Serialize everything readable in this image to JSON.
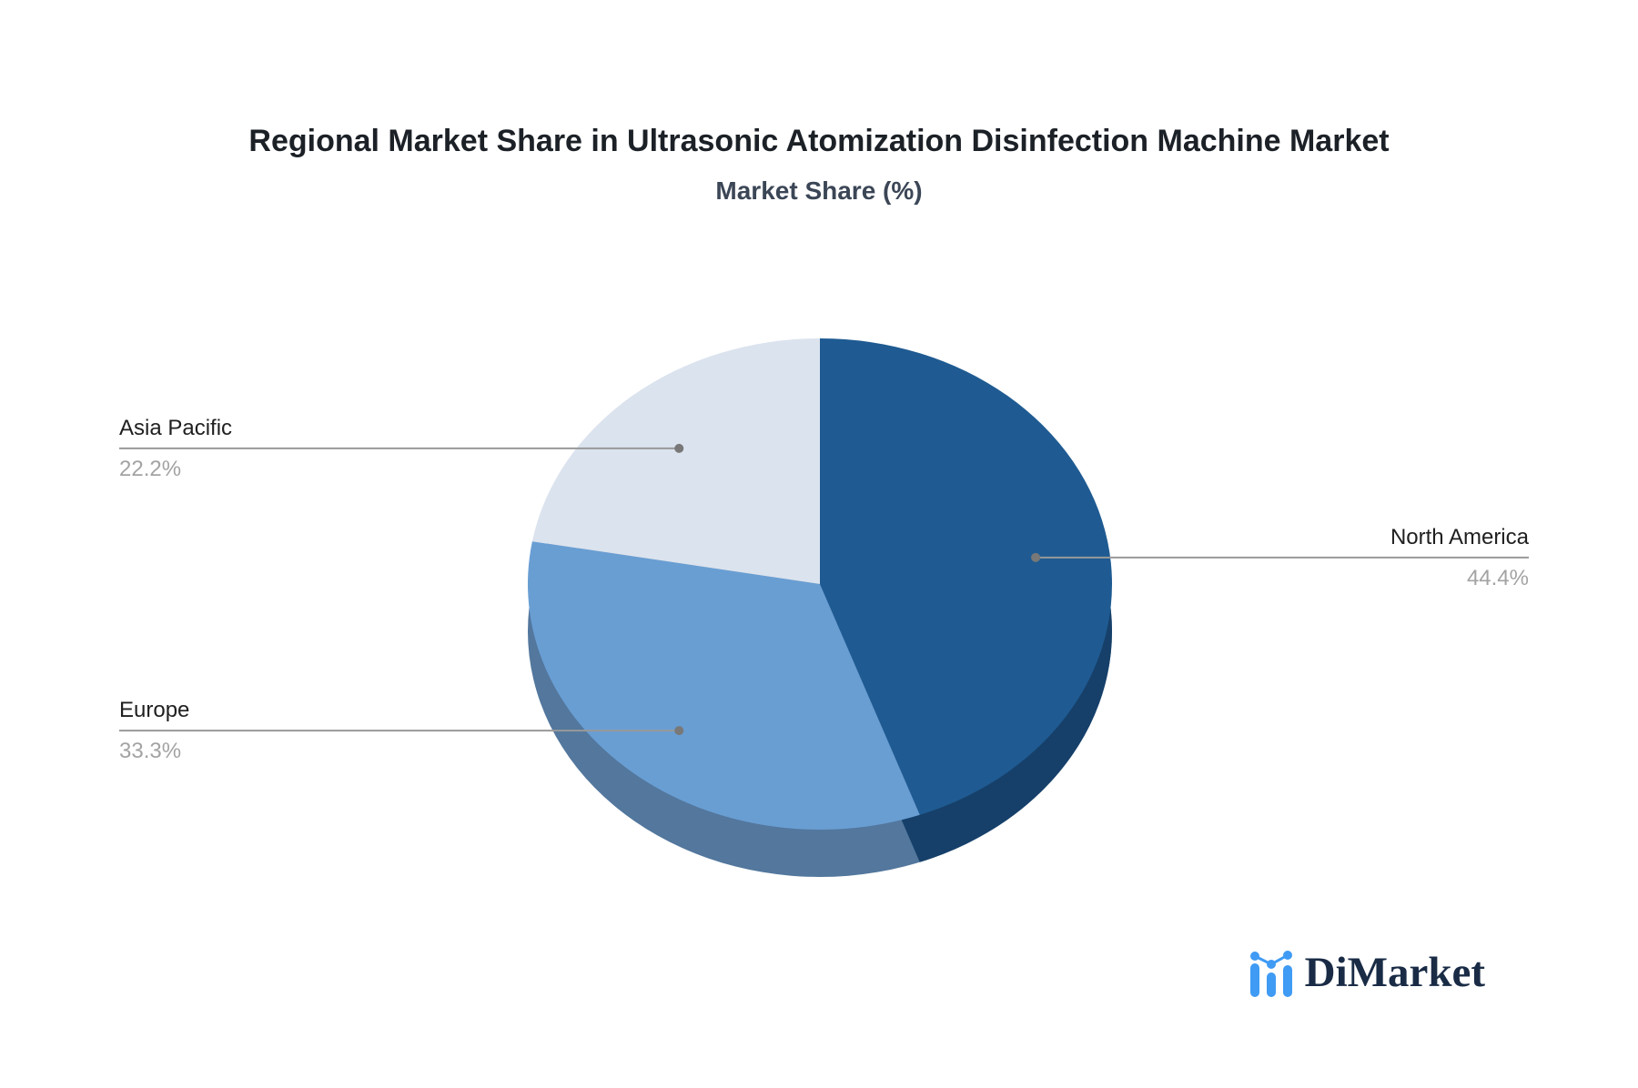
{
  "header": {
    "title": "Regional Market Share in Ultrasonic Atomization Disinfection Machine Market",
    "subtitle": "Market Share (%)"
  },
  "chart_data": {
    "type": "pie",
    "effect": "3d",
    "title": "Regional Market Share in Ultrasonic Atomization Disinfection Machine Market",
    "subtitle": "Market Share (%)",
    "unit": "%",
    "start_angle_deg": 90,
    "direction": "clockwise",
    "labels": [
      "North America",
      "Europe",
      "Asia Pacific"
    ],
    "values": [
      44.4,
      33.3,
      22.2
    ],
    "display_values": [
      "44.4%",
      "33.3%",
      "22.2%"
    ],
    "colors": [
      "#1f5b92",
      "#699ed3",
      "#dbe3ee"
    ],
    "side_colors": [
      "#16406a",
      "#53779d",
      "#c3ccd9"
    ],
    "label_sides": [
      "right",
      "left",
      "left"
    ],
    "leader_line_color": "#999999",
    "leader_dot_color": "#787878",
    "name_color": "#1f1f1f",
    "value_color": "#a3a3a3",
    "legend": "none",
    "background": "#ffffff"
  },
  "branding": {
    "logo_text": "DiMarket",
    "logo_icon": "bar-line-chart-icon",
    "logo_blue": "#3f9bf4",
    "logo_text_color": "#192b45"
  }
}
